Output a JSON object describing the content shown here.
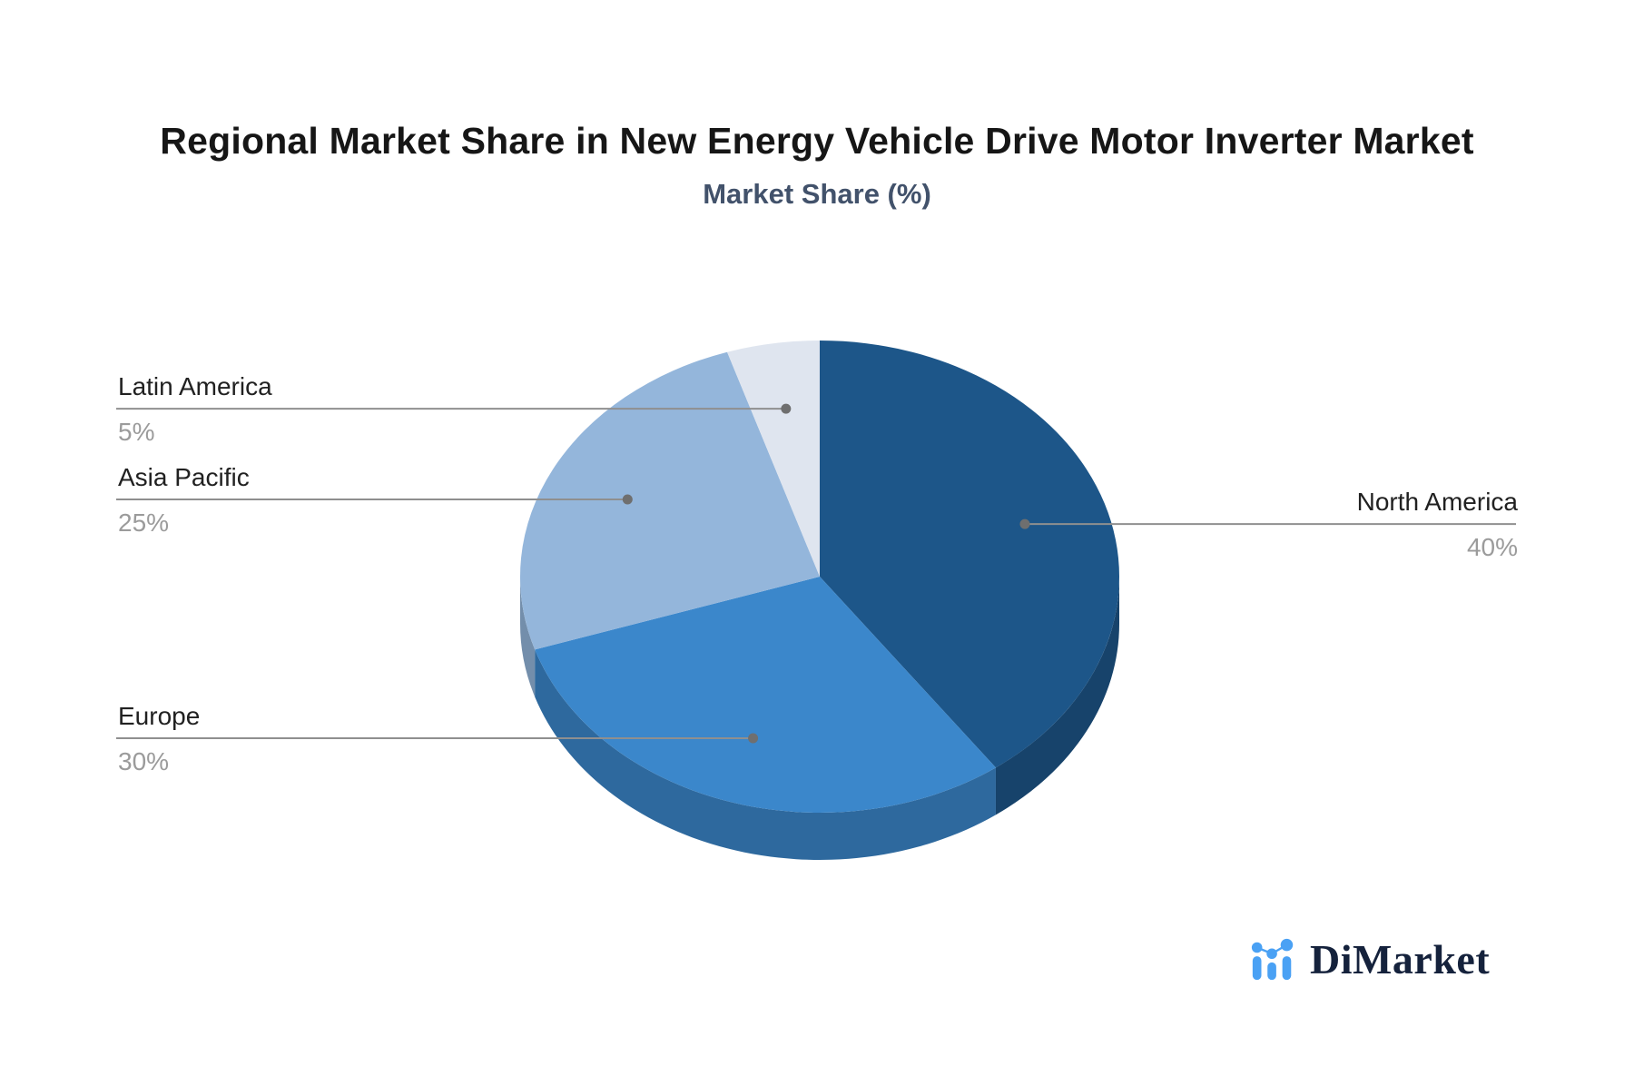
{
  "page": {
    "background": "#ffffff"
  },
  "header": {
    "title": "Regional Market Share in New Energy Vehicle Drive Motor Inverter Market",
    "subtitle": "Market Share (%)"
  },
  "chart_data": {
    "type": "pie",
    "style": "3d",
    "title": "Regional Market Share in New Energy Vehicle Drive Motor Inverter Market",
    "subtitle": "Market Share (%)",
    "unit": "%",
    "start_angle_deg": 0,
    "direction": "clockwise",
    "slices": [
      {
        "label": "North America",
        "value": 40,
        "display": "40%",
        "color": "#1d5689",
        "label_side": "right"
      },
      {
        "label": "Europe",
        "value": 30,
        "display": "30%",
        "color": "#3b87cb",
        "label_side": "left"
      },
      {
        "label": "Asia Pacific",
        "value": 25,
        "display": "25%",
        "color": "#94b6db",
        "label_side": "left"
      },
      {
        "label": "Latin America",
        "value": 5,
        "display": "5%",
        "color": "#dfe5ef",
        "label_side": "left"
      }
    ],
    "legend_position": "none",
    "leader_line_color": "#8f8f8f",
    "leader_dot_color": "#6f6f6f",
    "label_text_color": "#212121",
    "value_text_color": "#9b9b9b"
  },
  "logo": {
    "text": "DiMarket",
    "icon": "bar-chart-logo-icon",
    "icon_color": "#4aa1f4",
    "text_color": "#15223c"
  }
}
